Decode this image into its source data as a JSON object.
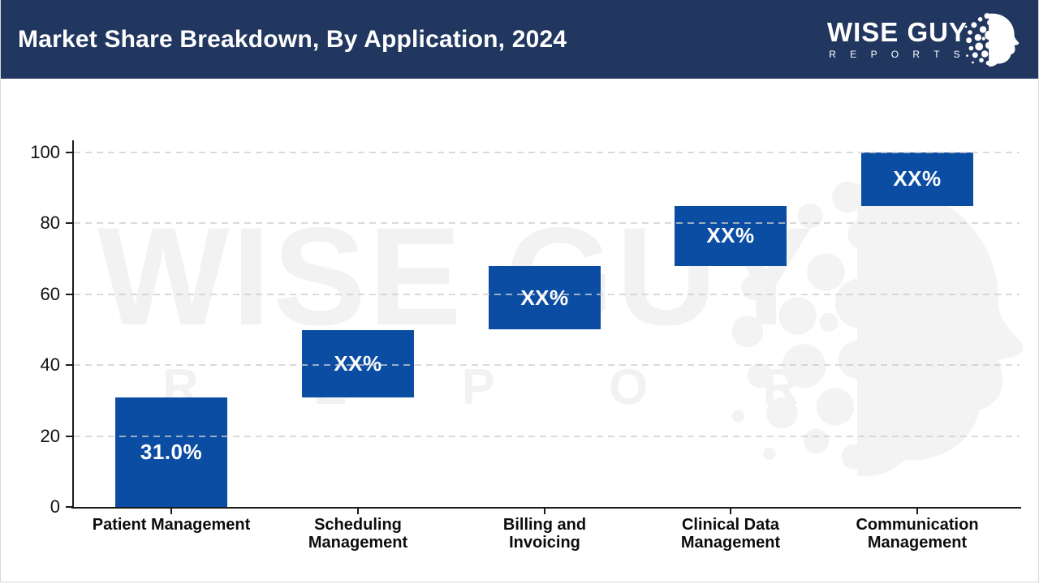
{
  "header": {
    "title": "Market Share Breakdown, By Application, 2024",
    "brand": {
      "line1": "WISE GUY",
      "line2": "R E P O R T S"
    }
  },
  "watermark": {
    "line1": "WISE GUY",
    "line2": "R E P O R T S"
  },
  "chart_data": {
    "type": "bar",
    "variant": "waterfall",
    "title": "Market Share Breakdown, By Application, 2024",
    "categories": [
      "Patient Management",
      "Scheduling Management",
      "Billing and Invoicing",
      "Clinical Data Management",
      "Communication Management"
    ],
    "category_lines": [
      [
        "Patient Management"
      ],
      [
        "Scheduling",
        "Management"
      ],
      [
        "Billing and",
        "Invoicing"
      ],
      [
        "Clinical Data",
        "Management"
      ],
      [
        "Communication",
        "Management"
      ]
    ],
    "segments": [
      {
        "category": "Patient Management",
        "start": 0,
        "end": 31,
        "label": "31.0%"
      },
      {
        "category": "Scheduling Management",
        "start": 31,
        "end": 50,
        "label": "XX%"
      },
      {
        "category": "Billing and Invoicing",
        "start": 50,
        "end": 68,
        "label": "XX%"
      },
      {
        "category": "Clinical Data Management",
        "start": 68,
        "end": 85,
        "label": "XX%"
      },
      {
        "category": "Communication Management",
        "start": 85,
        "end": 100,
        "label": "XX%"
      },
      {
        "category": "total",
        "start": 0,
        "end": 100,
        "label": ""
      }
    ],
    "yticks": [
      0,
      20,
      40,
      60,
      80,
      100
    ],
    "ylim": [
      0,
      105
    ],
    "xlabel": "",
    "ylabel": "",
    "grid": "dashed-horizontal",
    "legend": false,
    "bar_color": "#0b4da2",
    "bar_label_color": "#ffffff"
  },
  "colors": {
    "header_bg": "#213760",
    "bar": "#0b4da2",
    "grid": "#d0d0d0",
    "axis": "#1a1a1a",
    "tick_text": "#111111",
    "watermark": "#f2f2f2",
    "title_text": "#ffffff"
  }
}
